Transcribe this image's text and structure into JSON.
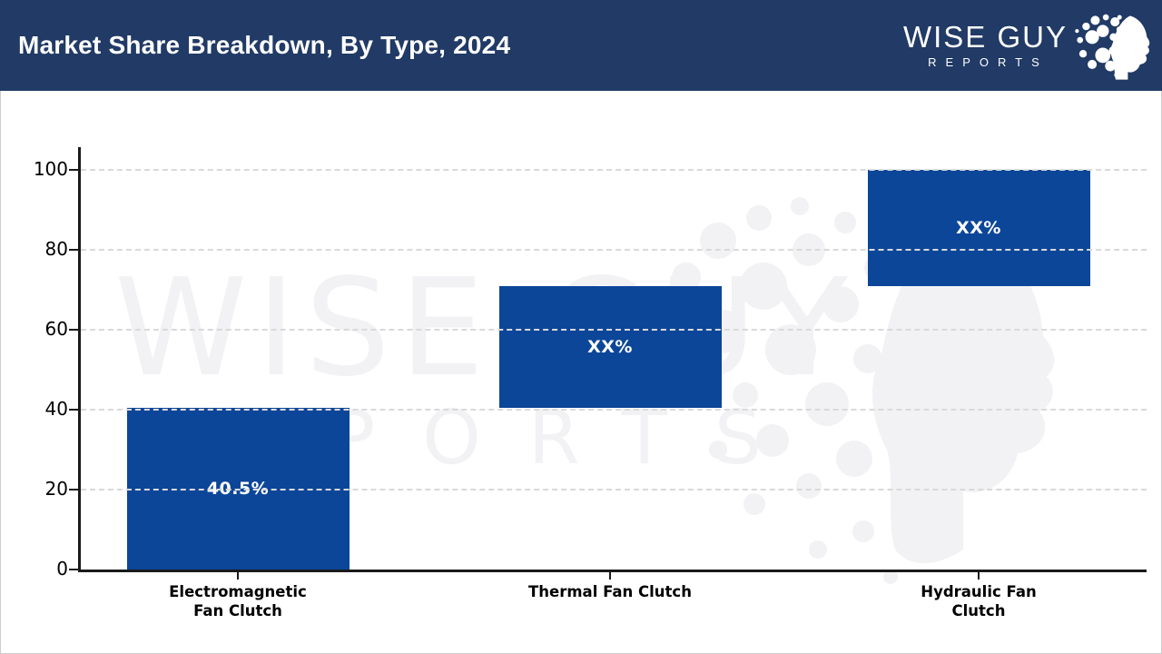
{
  "header": {
    "title": "Market Share Breakdown, By Type, 2024",
    "logo": {
      "wordmark": "WISE GUY",
      "subtitle": "REPORTS"
    }
  },
  "watermark": {
    "wordmark": "WISE GUY",
    "subtitle": "REPORTS"
  },
  "chart_data": {
    "type": "bar",
    "subtype": "floating-waterfall-bars",
    "title": "Market Share Breakdown, By Type, 2024",
    "categories": [
      "Electromagnetic Fan Clutch",
      "Thermal Fan Clutch",
      "Hydraulic Fan Clutch"
    ],
    "category_tick_lines": [
      [
        "Electromagnetic",
        "Fan Clutch"
      ],
      [
        "Thermal Fan Clutch"
      ],
      [
        "Hydraulic Fan",
        "Clutch"
      ]
    ],
    "segments": [
      {
        "category": "Electromagnetic Fan Clutch",
        "start": 0,
        "end": 40.5,
        "label": "40.5%"
      },
      {
        "category": "Thermal Fan Clutch",
        "start": 40.5,
        "end": 71,
        "label": "XX%"
      },
      {
        "category": "Hydraulic Fan Clutch",
        "start": 71,
        "end": 100,
        "label": "XX%"
      }
    ],
    "xlabel": "",
    "ylabel": "",
    "ylim": [
      0,
      100
    ],
    "yticks": [
      0,
      20,
      40,
      60,
      80,
      100
    ],
    "grid": "horizontal-dashed",
    "legend": "none",
    "bar_color": "#0c4699",
    "bar_label_color": "#ffffff"
  },
  "colors": {
    "header_bg": "#213a66",
    "axis": "#1a1a1a",
    "gridline": "#d9d9d9",
    "watermark": "#f2f2f5"
  }
}
